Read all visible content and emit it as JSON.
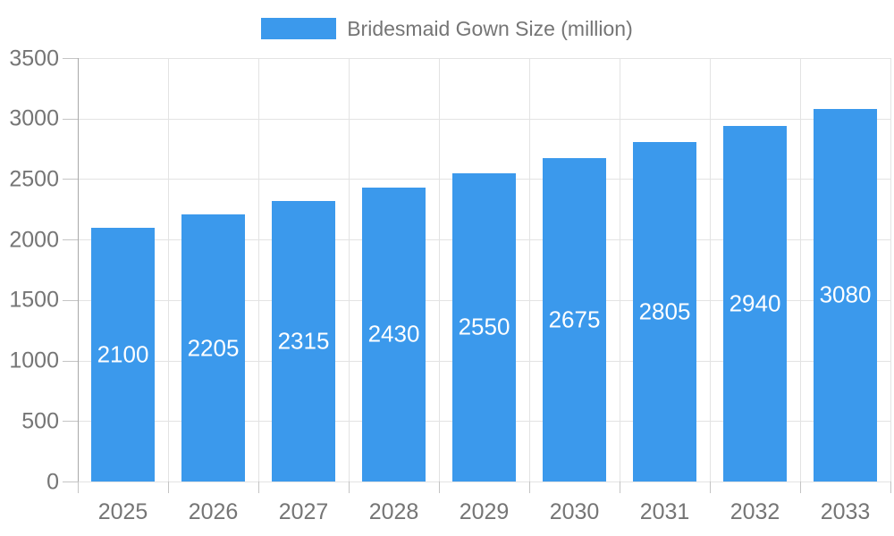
{
  "chart_data": {
    "type": "bar",
    "title": "",
    "legend": {
      "label": "Bridesmaid Gown Size (million)",
      "position": "top-center",
      "swatch_color": "#3B99EC"
    },
    "categories": [
      "2025",
      "2026",
      "2027",
      "2028",
      "2029",
      "2030",
      "2031",
      "2032",
      "2033"
    ],
    "series": [
      {
        "name": "Bridesmaid Gown Size (million)",
        "values": [
          2100,
          2205,
          2315,
          2430,
          2550,
          2675,
          2805,
          2940,
          3080
        ]
      }
    ],
    "value_labels": {
      "show": true,
      "position": "inside-center",
      "color": "#FFFFFF"
    },
    "xlabel": "",
    "ylabel": "",
    "ylim": [
      0,
      3500
    ],
    "yticks": [
      0,
      500,
      1000,
      1500,
      2000,
      2500,
      3000,
      3500
    ],
    "grid": {
      "horizontal": true,
      "vertical": true
    },
    "colors": {
      "bar": "#3B99EC",
      "grid": "#E3E3E3",
      "axis": "#A8A8A8",
      "tick": "#C4C4C4",
      "label_text": "#757575",
      "value_label_text": "#FFFFFF",
      "background": "#FFFFFF"
    }
  }
}
